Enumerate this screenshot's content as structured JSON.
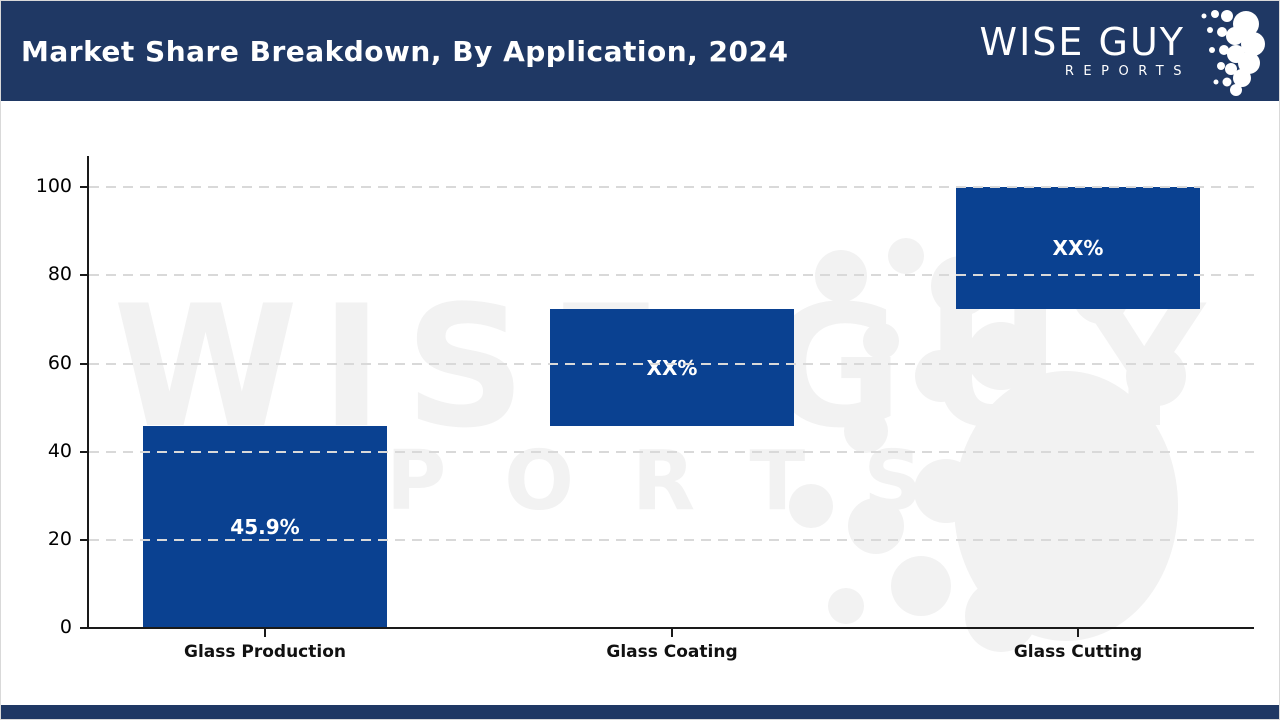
{
  "header": {
    "title": "Market Share Breakdown, By Application, 2024",
    "logo": {
      "name": "WISE GUY",
      "tagline": "REPORTS"
    }
  },
  "watermark": {
    "line1": "WISE GUY",
    "line2": "REPORTS"
  },
  "footer": {},
  "chart_data": {
    "type": "bar",
    "subtype": "floating-segment-waterfall",
    "title": "Market Share Breakdown, By Application, 2024",
    "categories": [
      "Glass Production",
      "Glass Coating",
      "Glass Cutting"
    ],
    "bars": [
      {
        "category": "Glass Production",
        "start": 0,
        "end": 45.9,
        "label": "45.9%"
      },
      {
        "category": "Glass Coating",
        "start": 45.9,
        "end": 72.3,
        "label": "XX%"
      },
      {
        "category": "Glass Cutting",
        "start": 72.3,
        "end": 100,
        "label": "XX%"
      }
    ],
    "xlabel": "",
    "ylabel": "",
    "ylim": [
      0,
      100
    ],
    "yticks": [
      0,
      20,
      40,
      60,
      80,
      100
    ],
    "grid": {
      "horizontal": true,
      "style": "dashed",
      "color": "#d9d9d9",
      "above_bars": true
    },
    "legend": "none",
    "bar_color": "#0a4191",
    "bar_label_color": "#ffffff",
    "axis_color": "#1a1a1a"
  },
  "colors": {
    "header_bg": "#1f3864",
    "footer_bg": "#1f3864",
    "background": "#ffffff",
    "watermark": "#f2f2f2"
  }
}
